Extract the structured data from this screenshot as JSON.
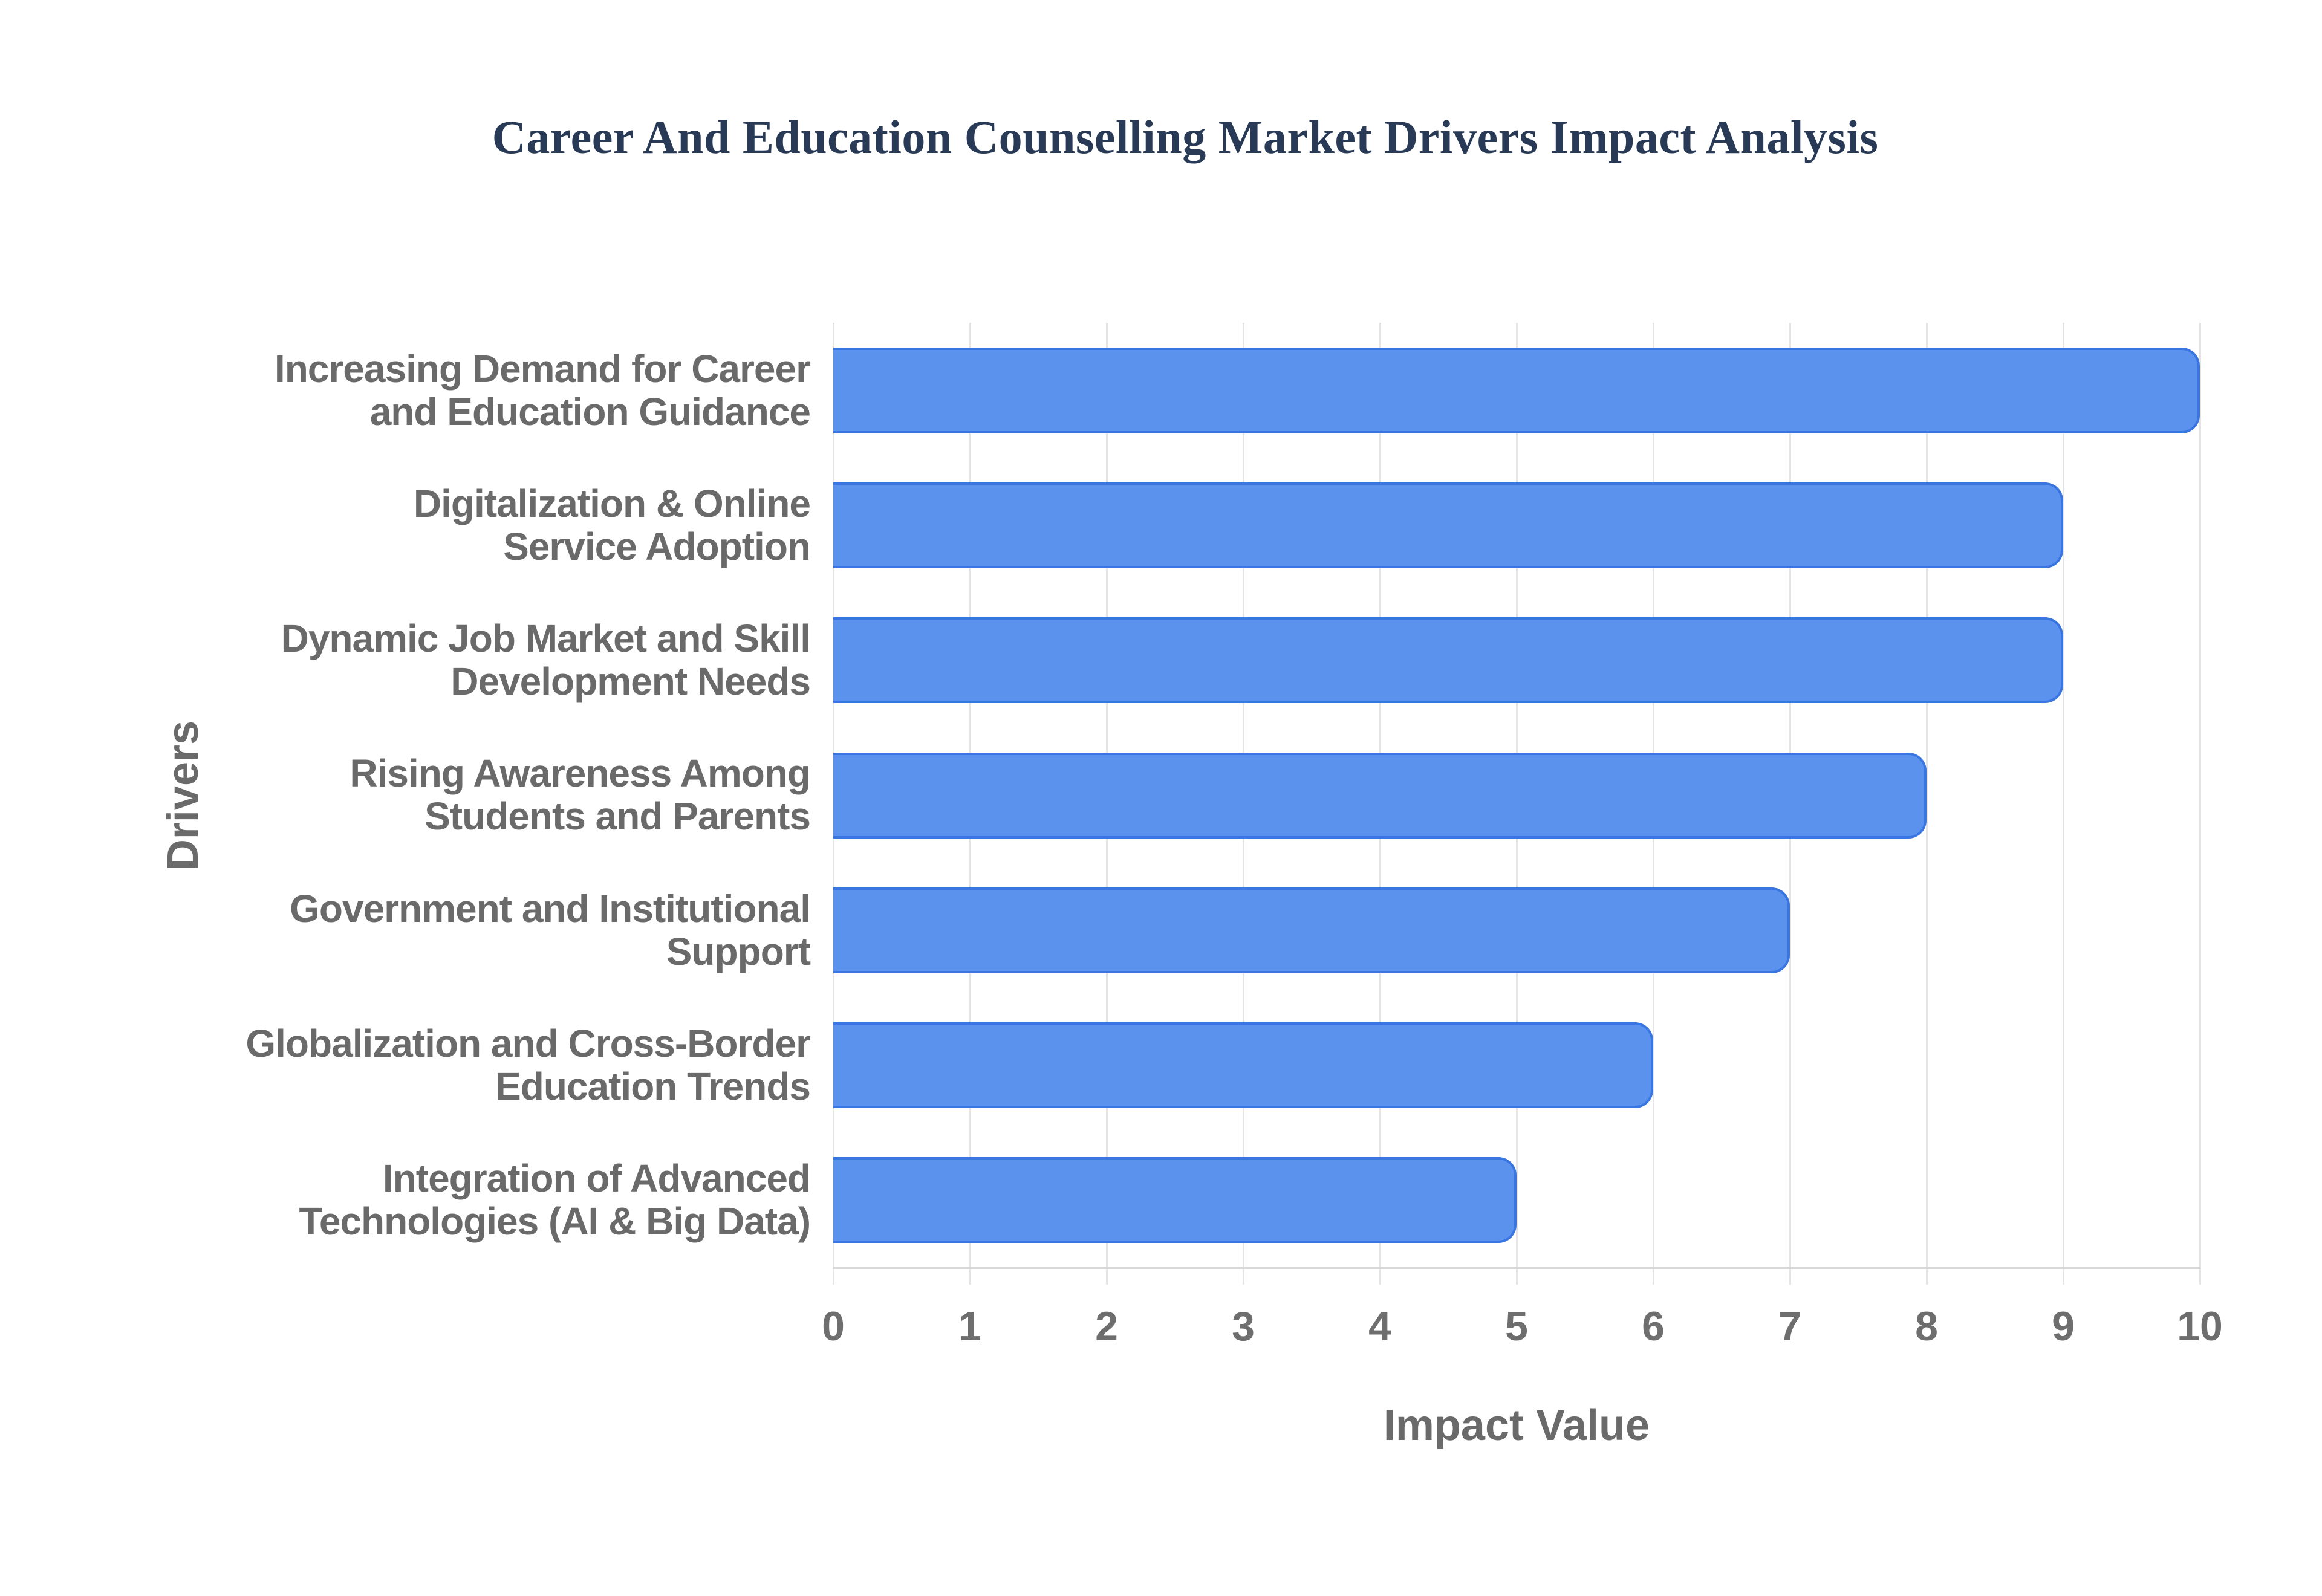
{
  "page": {
    "background": "#ffffff"
  },
  "chart_data": {
    "type": "bar",
    "orientation": "horizontal",
    "title": "Career And Education Counselling Market Drivers Impact Analysis",
    "categories": [
      "Increasing Demand for Career and Education Guidance",
      "Digitalization & Online Service Adoption",
      "Dynamic Job Market and Skill Development Needs",
      "Rising Awareness Among Students and Parents",
      "Government and Institutional Support",
      "Globalization and Cross-Border Education Trends",
      "Integration of Advanced Technologies (AI & Big Data)"
    ],
    "category_lines": [
      [
        "Increasing Demand for Career",
        "and Education Guidance"
      ],
      [
        "Digitalization & Online",
        "Service Adoption"
      ],
      [
        "Dynamic Job Market and Skill",
        "Development Needs"
      ],
      [
        "Rising Awareness Among",
        "Students and Parents"
      ],
      [
        "Government and Institutional",
        "Support"
      ],
      [
        "Globalization and Cross-Border",
        "Education Trends"
      ],
      [
        "Integration of Advanced",
        "Technologies (AI & Big Data)"
      ]
    ],
    "values": [
      10,
      9,
      9,
      8,
      7,
      6,
      5
    ],
    "xlabel": "Impact Value",
    "ylabel": "Drivers",
    "xlim": [
      0,
      10
    ],
    "x_ticks": [
      0,
      1,
      2,
      3,
      4,
      5,
      6,
      7,
      8,
      9,
      10
    ],
    "grid": "vertical",
    "legend": "none",
    "colors": {
      "background": "#ffffff",
      "title": "#283a55",
      "bar_fill": "#5b92ee",
      "bar_border": "#3a76e2",
      "grid_line": "#e4e4e4",
      "axis_line": "#d8d8d8",
      "category_label": "#6a6a6a",
      "tick_label": "#6e6e6e",
      "axis_title": "#6a6a6a"
    }
  }
}
